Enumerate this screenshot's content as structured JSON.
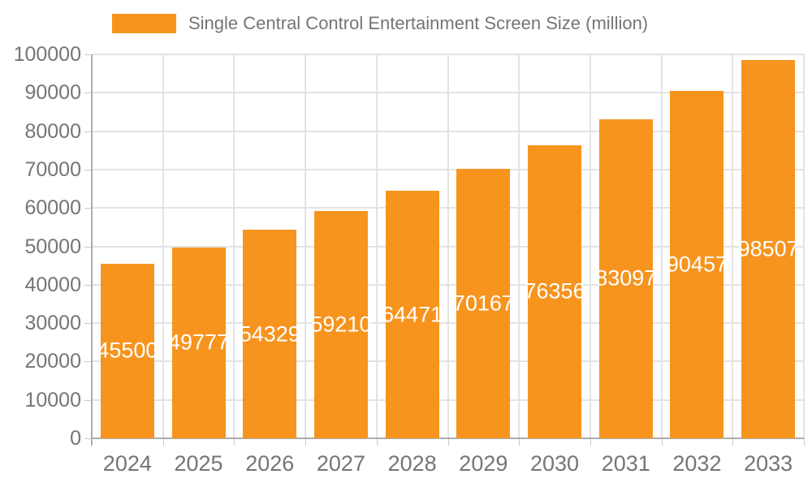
{
  "legend": {
    "label": "Single Central Control Entertainment Screen Size (million)"
  },
  "chart_data": {
    "type": "bar",
    "title": "Single Central Control Entertainment Screen Size (million)",
    "categories": [
      "2024",
      "2025",
      "2026",
      "2027",
      "2028",
      "2029",
      "2030",
      "2031",
      "2032",
      "2033"
    ],
    "values": [
      45500,
      49777,
      54329,
      59210,
      64471,
      70167,
      76356,
      83097,
      90457,
      98507
    ],
    "xlabel": "",
    "ylabel": "",
    "ylim": [
      0,
      100000
    ],
    "ytick_step": 10000,
    "ytick_labels": [
      "0",
      "10000",
      "20000",
      "30000",
      "40000",
      "50000",
      "60000",
      "70000",
      "80000",
      "90000",
      "100000"
    ],
    "grid": true,
    "legend_position": "top-left",
    "value_labels": "inside-center",
    "colors": {
      "bar": "#F7941E",
      "bar_value_text": "#FFFFFF",
      "axis_text": "#757575",
      "legend_text": "#757575",
      "grid_line": "#E3E3E3",
      "axis_line": "#ADADAD",
      "tick_line": "#C9C9C9",
      "background": "#FFFFFF"
    }
  }
}
